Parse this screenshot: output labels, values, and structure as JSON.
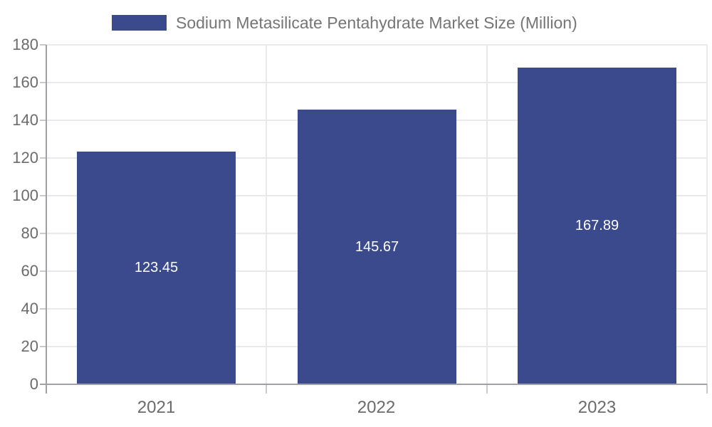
{
  "chart_data": {
    "type": "bar",
    "title": "Sodium Metasilicate Pentahydrate Market Size (Million)",
    "categories": [
      "2021",
      "2022",
      "2023"
    ],
    "series": [
      {
        "name": "Sodium Metasilicate Pentahydrate Market Size (Million)",
        "values": [
          123.45,
          145.67,
          167.89
        ]
      }
    ],
    "bar_labels": [
      "123.45",
      "145.67",
      "167.89"
    ],
    "ylabel": "",
    "xlabel": "",
    "ylim": [
      0,
      180
    ],
    "ytick_step": 20,
    "ytick_labels": [
      "0",
      "20",
      "40",
      "60",
      "80",
      "100",
      "120",
      "140",
      "160",
      "180"
    ],
    "grid": true,
    "legend_position": "top",
    "colors": {
      "bar": "#3A4A8C",
      "bar_label_text": "#FFFFFF",
      "axis_line": "#9FA1A6",
      "gridline": "#E9E9EB",
      "tick": "#C8CACF",
      "axis_text": "#6B6B6B",
      "legend_text": "#757575",
      "background": "#FFFFFF"
    }
  }
}
